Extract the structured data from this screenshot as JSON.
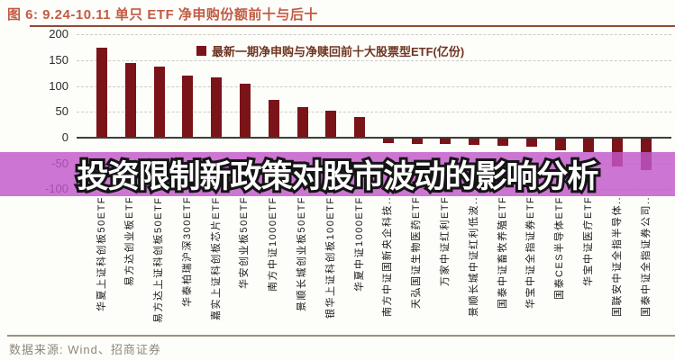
{
  "figure": {
    "title": "图 6:  9.24-10.11 单只 ETF 净申购份额前十与后十",
    "source": "数据来源: Wind、招商证券"
  },
  "overlay": {
    "text": "投资限制新政策对股市波动的影响分析",
    "background": "#C157CB"
  },
  "chart_data": {
    "type": "bar",
    "legend": "最新一期净申购与净赎回前十大股票型ETF(亿份)",
    "legend_position": "top-center",
    "categories": [
      "华夏上证科创板50ETF",
      "易方达创业板ETF",
      "易方达上证科创板50ETF",
      "华泰柏瑞沪深300ETF",
      "嘉实上证科创板芯片ETF",
      "华安创业板50ETF",
      "南方中证1000ETF",
      "景顺长城创业板50ETF",
      "银华上证科创板100ETF",
      "华夏中证1000ETF",
      "南方中证国新央企科技..",
      "天弘国证生物医药ETF",
      "万家中证红利ETF",
      "景顺长城中证红利低波..",
      "国泰中证畜牧养殖ETF",
      "华宝中证全指证券ETF",
      "国泰CES半导体ETF",
      "华宝中证医疗ETF",
      "国联安中证全指半导体..",
      "国泰中证全指证券公司.."
    ],
    "values": [
      174,
      144,
      137,
      121,
      117,
      104,
      73,
      59,
      52,
      41,
      -9,
      -10,
      -11,
      -12,
      -14,
      -15,
      -22,
      -27,
      -54,
      -61
    ],
    "yticks": [
      200,
      150,
      100,
      50,
      0,
      -50,
      -100
    ],
    "ylim": [
      -100,
      200
    ],
    "grid": "horizontal-dashed",
    "bar_color": "#7A1418",
    "title": "",
    "xlabel": "",
    "ylabel": ""
  }
}
